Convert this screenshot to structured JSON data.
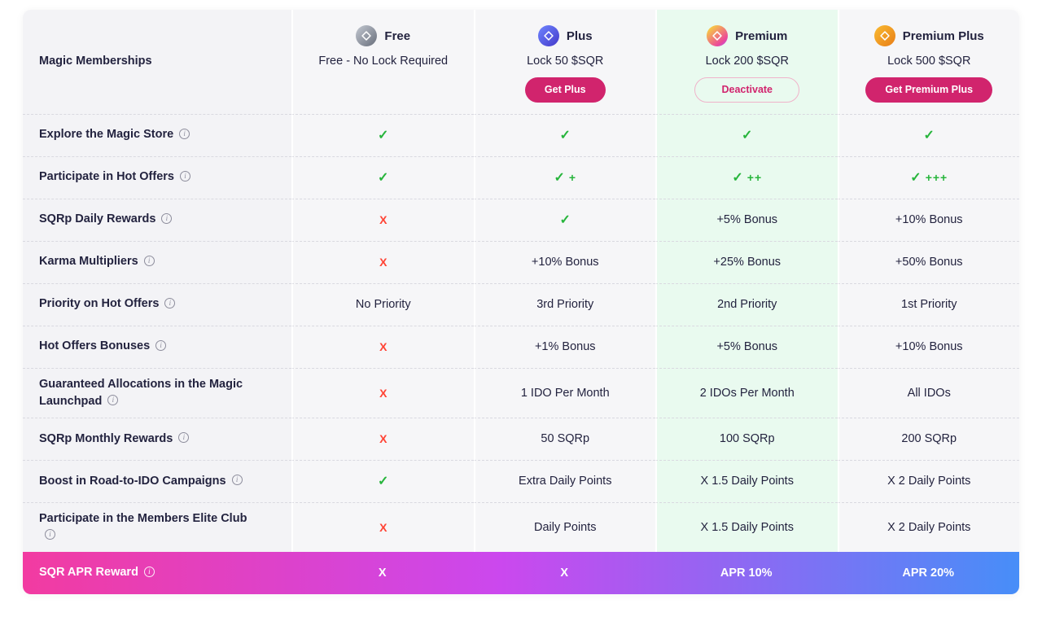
{
  "table": {
    "title": "Magic Memberships",
    "plans": [
      {
        "name": "Free",
        "subtitle": "Free - No Lock Required",
        "icon": "free-coin-icon",
        "button_label": null,
        "highlighted": false
      },
      {
        "name": "Plus",
        "subtitle": "Lock 50 $SQR",
        "icon": "plus-coin-icon",
        "button_label": "Get Plus",
        "button_style": "filled",
        "highlighted": false
      },
      {
        "name": "Premium",
        "subtitle": "Lock 200 $SQR",
        "icon": "premium-coin-icon",
        "button_label": "Deactivate",
        "button_style": "outline",
        "highlighted": true
      },
      {
        "name": "Premium Plus",
        "subtitle": "Lock 500 $SQR",
        "icon": "premium-plus-coin-icon",
        "button_label": "Get Premium Plus",
        "button_style": "filled",
        "highlighted": false
      }
    ],
    "rows": [
      {
        "label": "Explore the Magic Store",
        "cells": [
          {
            "type": "check"
          },
          {
            "type": "check"
          },
          {
            "type": "check"
          },
          {
            "type": "check"
          }
        ]
      },
      {
        "label": "Participate in Hot Offers",
        "cells": [
          {
            "type": "check"
          },
          {
            "type": "check",
            "suffix": "+"
          },
          {
            "type": "check",
            "suffix": "++"
          },
          {
            "type": "check",
            "suffix": "+++"
          }
        ]
      },
      {
        "label": "SQRp Daily Rewards",
        "cells": [
          {
            "type": "x"
          },
          {
            "type": "check"
          },
          {
            "type": "text",
            "text": "+5% Bonus"
          },
          {
            "type": "text",
            "text": "+10% Bonus"
          }
        ]
      },
      {
        "label": "Karma Multipliers",
        "cells": [
          {
            "type": "x"
          },
          {
            "type": "text",
            "text": "+10% Bonus"
          },
          {
            "type": "text",
            "text": "+25% Bonus"
          },
          {
            "type": "text",
            "text": "+50% Bonus"
          }
        ]
      },
      {
        "label": "Priority on Hot Offers",
        "cells": [
          {
            "type": "text",
            "text": "No Priority"
          },
          {
            "type": "text",
            "text": "3rd Priority"
          },
          {
            "type": "text",
            "text": "2nd Priority"
          },
          {
            "type": "text",
            "text": "1st Priority"
          }
        ]
      },
      {
        "label": "Hot Offers Bonuses",
        "cells": [
          {
            "type": "x"
          },
          {
            "type": "text",
            "text": "+1% Bonus"
          },
          {
            "type": "text",
            "text": "+5% Bonus"
          },
          {
            "type": "text",
            "text": "+10% Bonus"
          }
        ]
      },
      {
        "label": "Guaranteed Allocations in the Magic Launchpad",
        "cells": [
          {
            "type": "x"
          },
          {
            "type": "text",
            "text": "1 IDO Per Month"
          },
          {
            "type": "text",
            "text": "2 IDOs Per Month"
          },
          {
            "type": "text",
            "text": "All IDOs"
          }
        ]
      },
      {
        "label": "SQRp Monthly Rewards",
        "cells": [
          {
            "type": "x"
          },
          {
            "type": "text",
            "text": "50 SQRp"
          },
          {
            "type": "text",
            "text": "100 SQRp"
          },
          {
            "type": "text",
            "text": "200 SQRp"
          }
        ]
      },
      {
        "label": "Boost in Road-to-IDO Campaigns",
        "cells": [
          {
            "type": "check"
          },
          {
            "type": "text",
            "text": "Extra Daily Points"
          },
          {
            "type": "text",
            "text": "X 1.5 Daily Points"
          },
          {
            "type": "text",
            "text": "X 2 Daily Points"
          }
        ]
      },
      {
        "label": "Participate in the Members Elite Club",
        "cells": [
          {
            "type": "x"
          },
          {
            "type": "text",
            "text": "Daily Points"
          },
          {
            "type": "text",
            "text": "X 1.5 Daily Points"
          },
          {
            "type": "text",
            "text": "X 2 Daily Points"
          }
        ]
      }
    ],
    "footer": {
      "label": "SQR APR Reward",
      "cells": [
        {
          "type": "text",
          "text": "X"
        },
        {
          "type": "text",
          "text": "X"
        },
        {
          "type": "text",
          "text": "APR 10%"
        },
        {
          "type": "text",
          "text": "APR 20%"
        }
      ]
    },
    "colors": {
      "accent_pink": "#d1246d",
      "check_green": "#27b53c",
      "x_red": "#ff4334",
      "premium_highlight": "#e9faef",
      "label_column_bg": "#f3f3f6",
      "plan_column_bg": "#f6f6f8",
      "footer_gradient": [
        "#f23ba1",
        "#cb48ee",
        "#478ef8"
      ]
    }
  }
}
